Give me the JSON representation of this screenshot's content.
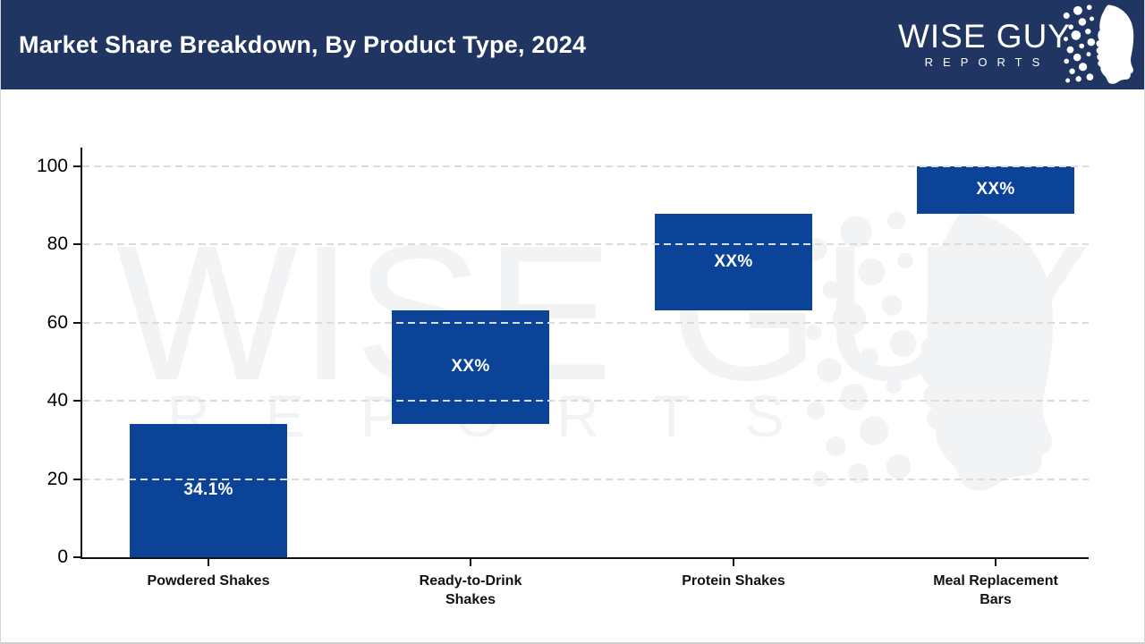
{
  "header": {
    "title": "Market Share Breakdown, By Product Type, 2024",
    "logo": {
      "name": "WISE GUY",
      "subtitle": "REPORTS"
    }
  },
  "watermark": {
    "line1": "WISE GUY",
    "line2": "REPORTS"
  },
  "chart_data": {
    "type": "bar",
    "subtype": "waterfall-floating-bars",
    "title": "Market Share Breakdown, By Product Type, 2024",
    "categories": [
      "Powdered Shakes",
      "Ready-to-Drink\nShakes",
      "Protein Shakes",
      "Meal Replacement\nBars"
    ],
    "segments": [
      {
        "category": "Powdered Shakes",
        "start": 0,
        "end": 34.1,
        "label": "34.1%"
      },
      {
        "category": "Ready-to-Drink Shakes",
        "start": 34.1,
        "end": 63.2,
        "label": "XX%"
      },
      {
        "category": "Protein Shakes",
        "start": 63.2,
        "end": 87.8,
        "label": "XX%"
      },
      {
        "category": "Meal Replacement Bars",
        "start": 87.8,
        "end": 100,
        "label": "XX%"
      }
    ],
    "xlabel": "",
    "ylabel": "",
    "ylim": [
      0,
      100
    ],
    "yticks": [
      0,
      20,
      40,
      60,
      80,
      100
    ],
    "grid": "horizontal-dashed",
    "legend": "none",
    "bar_color": "#0b4398",
    "bar_label_color": "#ffffff"
  },
  "colors": {
    "header_bg": "#213563",
    "bar": "#0b4398",
    "grid": "#dcdcdc",
    "axis": "#111111",
    "watermark": "#f2f3f5"
  }
}
